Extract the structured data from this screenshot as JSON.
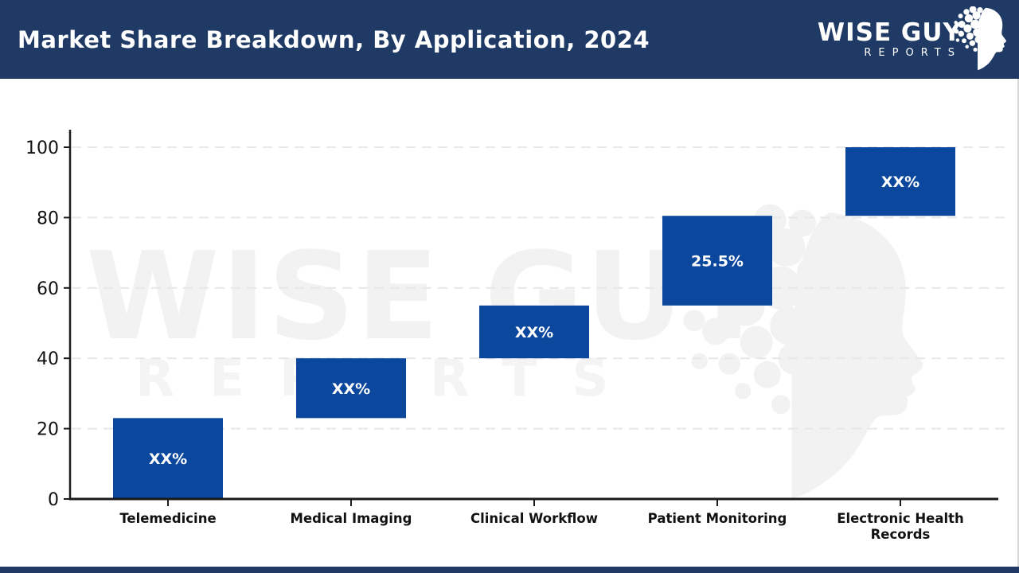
{
  "header": {
    "title": "Market Share Breakdown, By Application, 2024",
    "logo": {
      "line1": "WISE GUY",
      "line2": "REPORTS"
    }
  },
  "watermark": {
    "line1": "WISE GUY",
    "line2": "REPORTS"
  },
  "chart_data": {
    "type": "bar",
    "subtype": "waterfall",
    "title": "Market Share Breakdown, By Application, 2024",
    "categories": [
      "Telemedicine",
      "Medical Imaging",
      "Clinical Workflow",
      "Patient Monitoring",
      "Electronic Health Records"
    ],
    "segments": [
      {
        "category": "Telemedicine",
        "start": 0,
        "end": 23,
        "value": 23,
        "label": "XX%"
      },
      {
        "category": "Medical Imaging",
        "start": 23,
        "end": 40,
        "value": 17,
        "label": "XX%"
      },
      {
        "category": "Clinical Workflow",
        "start": 40,
        "end": 55,
        "value": 15,
        "label": "XX%"
      },
      {
        "category": "Patient Monitoring",
        "start": 55,
        "end": 80.5,
        "value": 25.5,
        "label": "25.5%"
      },
      {
        "category": "Electronic Health Records",
        "start": 80.5,
        "end": 100,
        "value": 19.5,
        "label": "XX%"
      }
    ],
    "xlabel": "",
    "ylabel": "",
    "ylim": [
      0,
      104.5
    ],
    "yticks": [
      0,
      20,
      40,
      60,
      80,
      100
    ],
    "grid": "horizontal-dashed",
    "legend": "none",
    "bar_color": "#0b479c",
    "bar_label_color": "#ffffff"
  },
  "colors": {
    "header_bg": "#203a66",
    "bar": "#0b479c",
    "grid": "#e7e7e7",
    "axis": "#1a1a1a",
    "tick_text": "#111111",
    "watermark": "#f2f2f2"
  }
}
